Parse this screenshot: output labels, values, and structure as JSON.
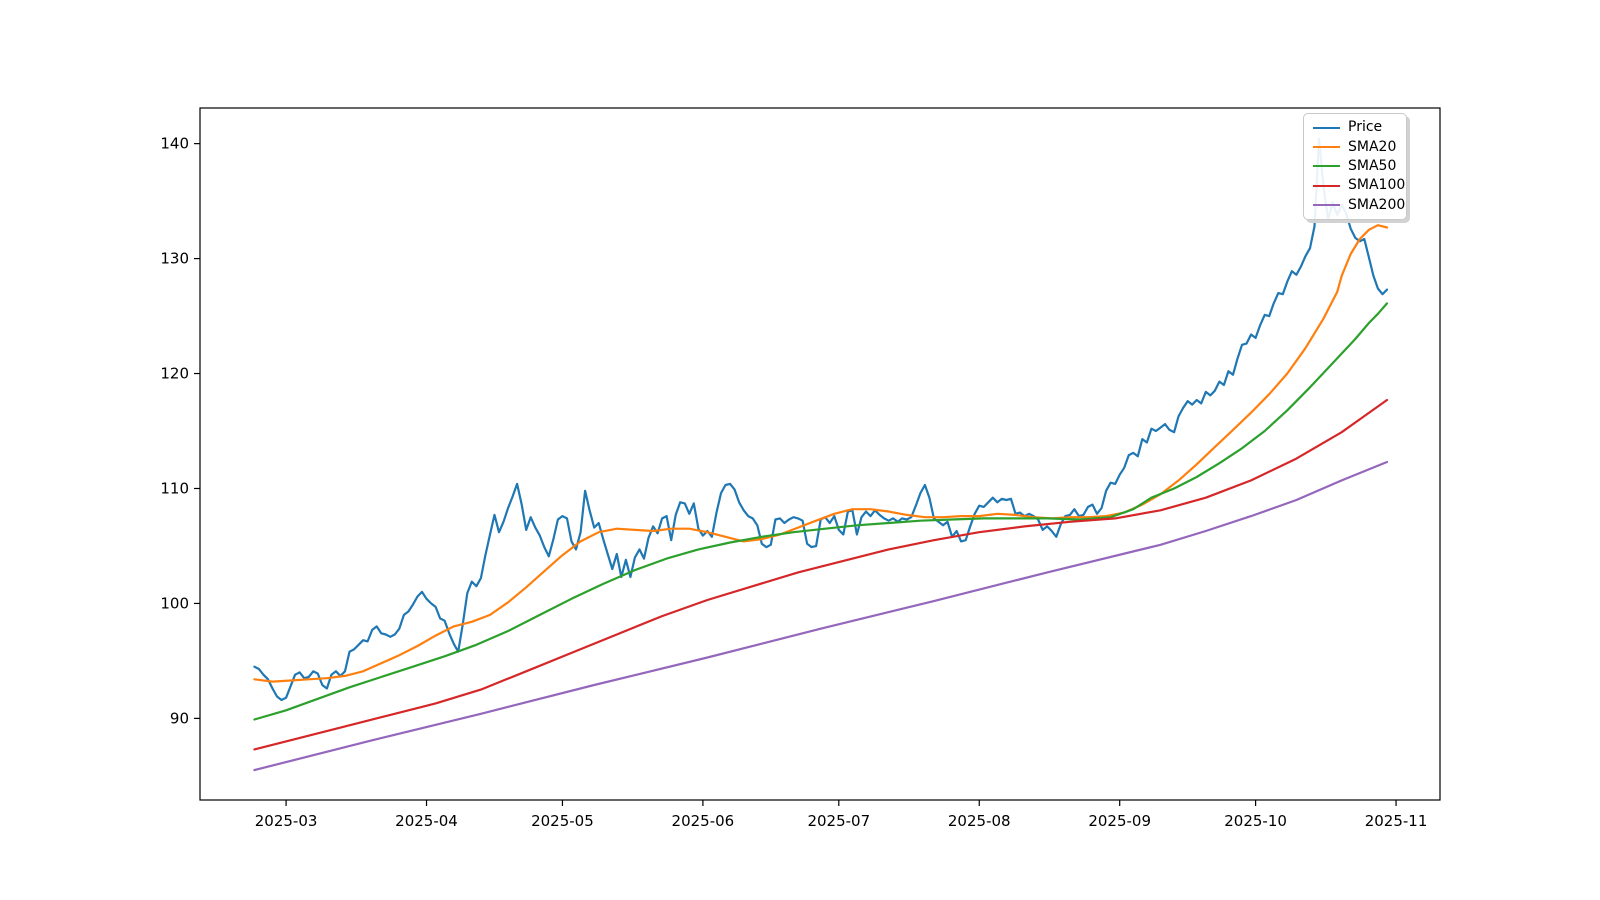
{
  "figure": {
    "background": "#ffffff",
    "plot_border_color": "#000000"
  },
  "chart_data": {
    "type": "line",
    "title": "",
    "xlabel": "",
    "ylabel": "",
    "grid": false,
    "legend_position": "upper right",
    "x_unit": "days since 2025-02-22",
    "xlim_days": [
      -12,
      261.7
    ],
    "ylim": [
      82.9,
      143.1
    ],
    "y_ticks": [
      90,
      100,
      110,
      120,
      130,
      140
    ],
    "x_ticks": [
      {
        "day": 7,
        "label": "2025-03"
      },
      {
        "day": 38,
        "label": "2025-04"
      },
      {
        "day": 68,
        "label": "2025-05"
      },
      {
        "day": 99,
        "label": "2025-06"
      },
      {
        "day": 129,
        "label": "2025-07"
      },
      {
        "day": 160,
        "label": "2025-08"
      },
      {
        "day": 191,
        "label": "2025-09"
      },
      {
        "day": 221,
        "label": "2025-10"
      },
      {
        "day": 252,
        "label": "2025-11"
      }
    ],
    "series": [
      {
        "name": "Price",
        "color": "#1f77b4",
        "x_start_day": 0,
        "x_step": 1,
        "values": [
          94.5,
          94.3,
          93.8,
          93.4,
          92.6,
          91.9,
          91.6,
          91.8,
          92.8,
          93.8,
          94.0,
          93.5,
          93.6,
          94.1,
          93.9,
          92.9,
          92.6,
          93.8,
          94.1,
          93.7,
          94.1,
          95.8,
          96.0,
          96.4,
          96.8,
          96.7,
          97.7,
          98.0,
          97.4,
          97.3,
          97.1,
          97.3,
          97.8,
          99.0,
          99.3,
          99.9,
          100.6,
          101.0,
          100.4,
          100.0,
          99.7,
          98.7,
          98.5,
          97.4,
          96.5,
          95.8,
          98.2,
          100.9,
          101.9,
          101.5,
          102.2,
          104.2,
          106.0,
          107.7,
          106.2,
          107.1,
          108.3,
          109.3,
          110.4,
          108.6,
          106.4,
          107.5,
          106.6,
          105.9,
          104.9,
          104.1,
          105.6,
          107.3,
          107.6,
          107.4,
          105.4,
          104.7,
          106.2,
          109.8,
          108.1,
          106.6,
          107.0,
          105.6,
          104.3,
          103.0,
          104.3,
          102.3,
          103.8,
          102.3,
          104.0,
          104.7,
          103.9,
          105.7,
          106.7,
          106.1,
          107.4,
          107.6,
          105.5,
          107.7,
          108.8,
          108.7,
          107.8,
          108.7,
          106.5,
          105.9,
          106.3,
          105.8,
          107.9,
          109.6,
          110.3,
          110.4,
          109.9,
          108.8,
          108.1,
          107.6,
          107.4,
          106.8,
          105.2,
          104.9,
          105.1,
          107.3,
          107.4,
          107.0,
          107.3,
          107.5,
          107.4,
          107.2,
          105.2,
          104.9,
          105.0,
          107.3,
          107.5,
          107.0,
          107.6,
          106.4,
          106.0,
          108.0,
          108.1,
          106.0,
          107.5,
          108.0,
          107.6,
          108.1,
          107.7,
          107.4,
          107.2,
          107.4,
          107.1,
          107.4,
          107.3,
          107.5,
          108.5,
          109.6,
          110.3,
          109.2,
          107.4,
          107.1,
          106.8,
          107.1,
          105.8,
          106.3,
          105.4,
          105.5,
          106.7,
          107.8,
          108.5,
          108.4,
          108.8,
          109.2,
          108.8,
          109.1,
          109.0,
          109.1,
          107.8,
          107.9,
          107.6,
          107.8,
          107.6,
          107.3,
          106.4,
          106.7,
          106.3,
          105.8,
          106.9,
          107.6,
          107.7,
          108.2,
          107.6,
          107.7,
          108.4,
          108.6,
          107.8,
          108.3,
          109.8,
          110.5,
          110.4,
          111.2,
          111.8,
          112.9,
          113.1,
          112.8,
          114.3,
          114.0,
          115.2,
          115.0,
          115.3,
          115.6,
          115.1,
          114.9,
          116.3,
          117.0,
          117.6,
          117.3,
          117.7,
          117.4,
          118.4,
          118.1,
          118.5,
          119.3,
          119.0,
          120.2,
          119.9,
          121.3,
          122.5,
          122.6,
          123.4,
          123.1,
          124.2,
          125.1,
          125.0,
          126.1,
          127.0,
          126.9,
          128.0,
          128.9,
          128.6,
          129.3,
          130.2,
          130.9,
          132.8,
          140.4,
          136.2,
          133.4,
          134.9,
          133.8,
          134.7,
          133.9,
          132.6,
          131.8,
          131.5,
          131.7,
          130.1,
          128.5,
          127.4,
          126.9,
          127.3
        ]
      },
      {
        "name": "SMA20",
        "color": "#ff7f0e",
        "points": [
          [
            0,
            93.4
          ],
          [
            4,
            93.2
          ],
          [
            8,
            93.3
          ],
          [
            12,
            93.4
          ],
          [
            16,
            93.5
          ],
          [
            20,
            93.7
          ],
          [
            24,
            94.1
          ],
          [
            28,
            94.8
          ],
          [
            32,
            95.5
          ],
          [
            36,
            96.3
          ],
          [
            40,
            97.2
          ],
          [
            44,
            98.0
          ],
          [
            48,
            98.4
          ],
          [
            52,
            99.0
          ],
          [
            56,
            100.1
          ],
          [
            60,
            101.4
          ],
          [
            64,
            102.8
          ],
          [
            68,
            104.2
          ],
          [
            72,
            105.4
          ],
          [
            76,
            106.2
          ],
          [
            80,
            106.5
          ],
          [
            84,
            106.4
          ],
          [
            88,
            106.3
          ],
          [
            92,
            106.5
          ],
          [
            96,
            106.5
          ],
          [
            100,
            106.2
          ],
          [
            104,
            105.8
          ],
          [
            108,
            105.4
          ],
          [
            112,
            105.6
          ],
          [
            116,
            106.0
          ],
          [
            120,
            106.6
          ],
          [
            124,
            107.2
          ],
          [
            128,
            107.8
          ],
          [
            132,
            108.2
          ],
          [
            136,
            108.2
          ],
          [
            140,
            108.0
          ],
          [
            144,
            107.7
          ],
          [
            148,
            107.5
          ],
          [
            152,
            107.5
          ],
          [
            156,
            107.6
          ],
          [
            160,
            107.6
          ],
          [
            164,
            107.8
          ],
          [
            168,
            107.7
          ],
          [
            172,
            107.5
          ],
          [
            176,
            107.4
          ],
          [
            180,
            107.5
          ],
          [
            184,
            107.5
          ],
          [
            188,
            107.6
          ],
          [
            192,
            107.9
          ],
          [
            196,
            108.6
          ],
          [
            200,
            109.5
          ],
          [
            204,
            110.7
          ],
          [
            208,
            112.1
          ],
          [
            212,
            113.6
          ],
          [
            216,
            115.1
          ],
          [
            220,
            116.6
          ],
          [
            224,
            118.2
          ],
          [
            228,
            120.0
          ],
          [
            232,
            122.2
          ],
          [
            236,
            124.8
          ],
          [
            239,
            127.1
          ],
          [
            240,
            128.5
          ],
          [
            242,
            130.4
          ],
          [
            244,
            131.7
          ],
          [
            246,
            132.5
          ],
          [
            248,
            132.9
          ],
          [
            250,
            132.7
          ]
        ]
      },
      {
        "name": "SMA50",
        "color": "#2ca02c",
        "points": [
          [
            0,
            89.9
          ],
          [
            7,
            90.7
          ],
          [
            14,
            91.7
          ],
          [
            21,
            92.7
          ],
          [
            28,
            93.6
          ],
          [
            35,
            94.5
          ],
          [
            42,
            95.4
          ],
          [
            49,
            96.4
          ],
          [
            56,
            97.6
          ],
          [
            63,
            99.0
          ],
          [
            70,
            100.4
          ],
          [
            77,
            101.7
          ],
          [
            84,
            102.9
          ],
          [
            91,
            103.9
          ],
          [
            98,
            104.7
          ],
          [
            105,
            105.3
          ],
          [
            112,
            105.8
          ],
          [
            119,
            106.2
          ],
          [
            126,
            106.5
          ],
          [
            133,
            106.8
          ],
          [
            140,
            107.0
          ],
          [
            147,
            107.2
          ],
          [
            154,
            107.3
          ],
          [
            161,
            107.4
          ],
          [
            168,
            107.4
          ],
          [
            175,
            107.4
          ],
          [
            182,
            107.3
          ],
          [
            189,
            107.5
          ],
          [
            194,
            108.2
          ],
          [
            198,
            109.2
          ],
          [
            203,
            110.0
          ],
          [
            208,
            111.0
          ],
          [
            213,
            112.2
          ],
          [
            218,
            113.5
          ],
          [
            223,
            115.0
          ],
          [
            228,
            116.8
          ],
          [
            233,
            118.8
          ],
          [
            238,
            120.9
          ],
          [
            243,
            123.0
          ],
          [
            246,
            124.4
          ],
          [
            248,
            125.2
          ],
          [
            250,
            126.1
          ]
        ]
      },
      {
        "name": "SMA100",
        "color": "#d62728",
        "points": [
          [
            0,
            87.3
          ],
          [
            10,
            88.3
          ],
          [
            20,
            89.3
          ],
          [
            30,
            90.3
          ],
          [
            40,
            91.3
          ],
          [
            50,
            92.5
          ],
          [
            60,
            94.1
          ],
          [
            70,
            95.7
          ],
          [
            80,
            97.3
          ],
          [
            90,
            98.9
          ],
          [
            100,
            100.3
          ],
          [
            110,
            101.5
          ],
          [
            120,
            102.7
          ],
          [
            130,
            103.7
          ],
          [
            140,
            104.7
          ],
          [
            150,
            105.5
          ],
          [
            160,
            106.2
          ],
          [
            170,
            106.7
          ],
          [
            180,
            107.1
          ],
          [
            190,
            107.4
          ],
          [
            200,
            108.1
          ],
          [
            210,
            109.2
          ],
          [
            220,
            110.7
          ],
          [
            230,
            112.6
          ],
          [
            240,
            114.9
          ],
          [
            245,
            116.3
          ],
          [
            250,
            117.7
          ]
        ]
      },
      {
        "name": "SMA200",
        "color": "#9467bd",
        "points": [
          [
            0,
            85.5
          ],
          [
            25,
            88.0
          ],
          [
            50,
            90.4
          ],
          [
            75,
            92.9
          ],
          [
            100,
            95.3
          ],
          [
            125,
            97.8
          ],
          [
            150,
            100.2
          ],
          [
            175,
            102.7
          ],
          [
            200,
            105.1
          ],
          [
            210,
            106.3
          ],
          [
            220,
            107.6
          ],
          [
            230,
            109.0
          ],
          [
            240,
            110.7
          ],
          [
            250,
            112.3
          ]
        ]
      }
    ]
  }
}
